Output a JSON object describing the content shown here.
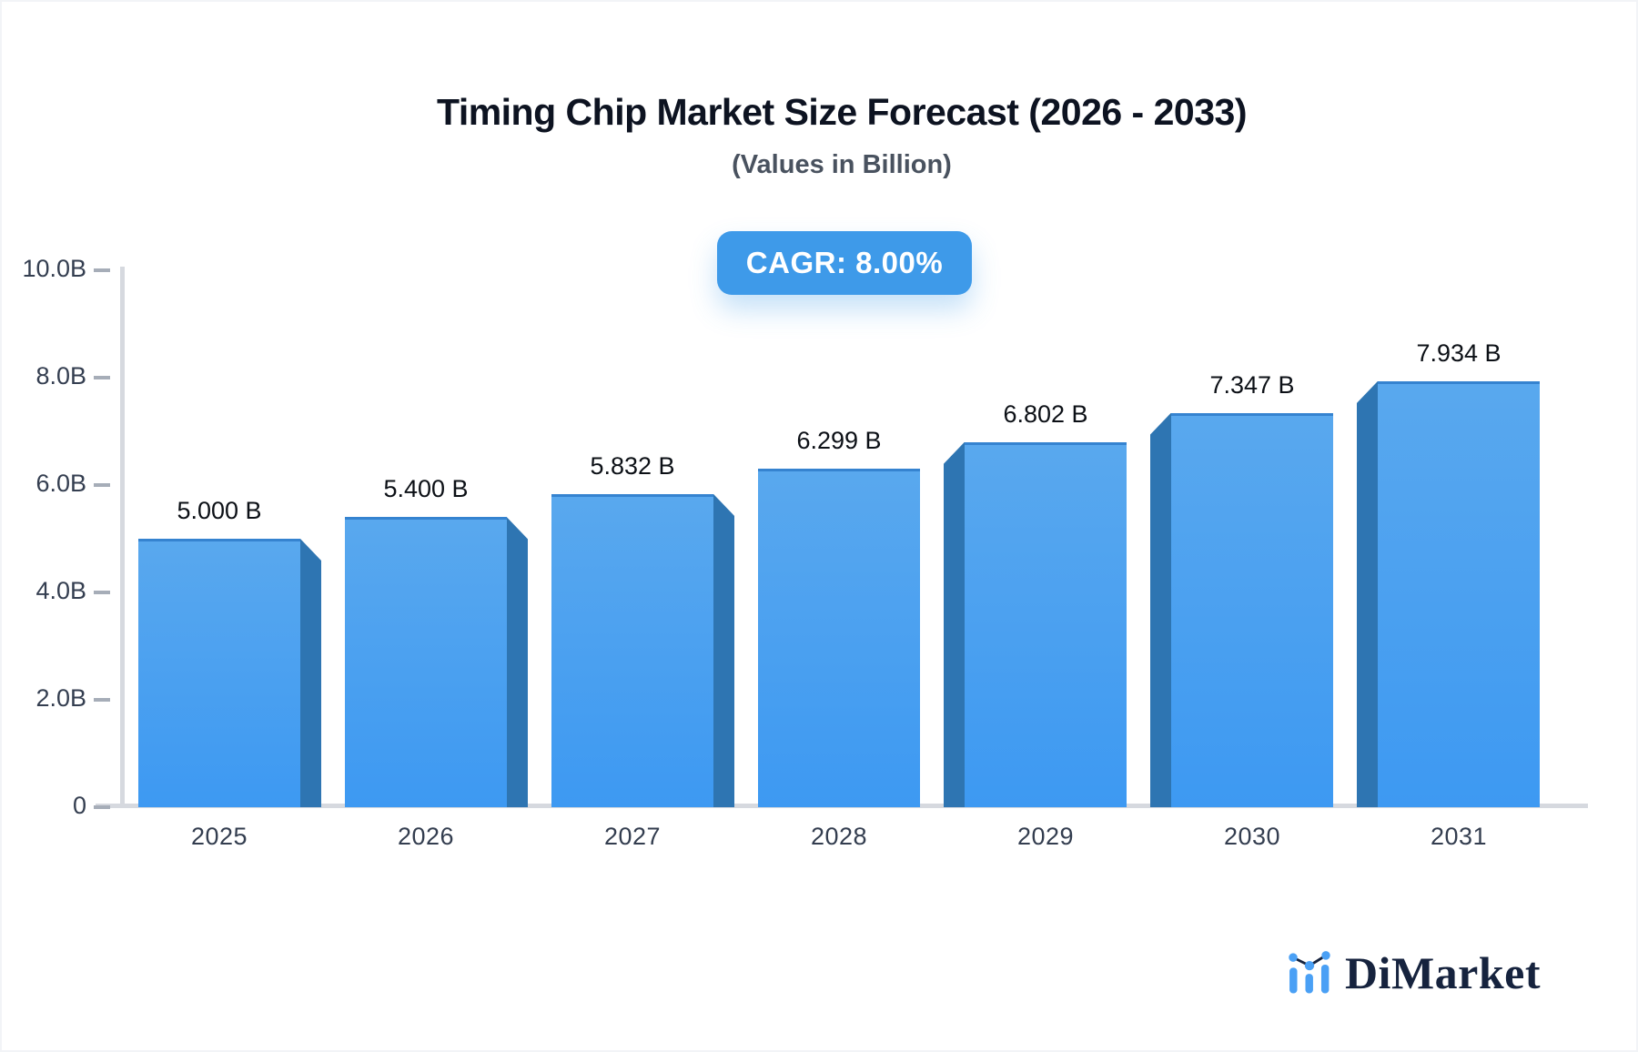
{
  "title": "Timing Chip Market Size Forecast (2026 - 2033)",
  "subtitle": "(Values in Billion)",
  "badge": {
    "label": "CAGR: 8.00%"
  },
  "watermark": {
    "brand": "DiMarket",
    "icon": "bar-chart-logo-icon"
  },
  "chart_data": {
    "type": "bar",
    "title": "Timing Chip Market Size Forecast (2026 - 2033)",
    "subtitle": "(Values in Billion)",
    "cagr": "8.00%",
    "categories": [
      "2025",
      "2026",
      "2027",
      "2028",
      "2029",
      "2030",
      "2031"
    ],
    "values": [
      5.0,
      5.4,
      5.832,
      6.299,
      6.802,
      7.347,
      7.934
    ],
    "value_labels": [
      "5.000 B",
      "5.400 B",
      "5.832 B",
      "6.299 B",
      "6.802 B",
      "7.347 B",
      "7.934 B"
    ],
    "xlabel": "",
    "ylabel": "",
    "ylim": [
      0,
      10
    ],
    "y_ticks": [
      {
        "value": 10,
        "label": "10.0B"
      },
      {
        "value": 8,
        "label": "8.0B"
      },
      {
        "value": 6,
        "label": "6.0B"
      },
      {
        "value": 4,
        "label": "4.0B"
      },
      {
        "value": 2,
        "label": "2.0B"
      },
      {
        "value": 0,
        "label": "0"
      }
    ],
    "grid": false,
    "legend": false,
    "style": "3d-beveled-bars-center-perspective"
  },
  "colors": {
    "bar_face_top": "#59a8ee",
    "bar_face_bottom": "#3d99f2",
    "bar_side": "#2e75b2",
    "badge_bg": "#3e9ae9",
    "axis_line": "#d6d9df",
    "tick": "#a6adb8",
    "title_text": "#0d1321",
    "subtitle_text": "#49525f",
    "value_text": "#0c1016",
    "axis_text": "#343e50",
    "brand_navy": "#16233e",
    "brand_blue": "#4aa0f5"
  }
}
